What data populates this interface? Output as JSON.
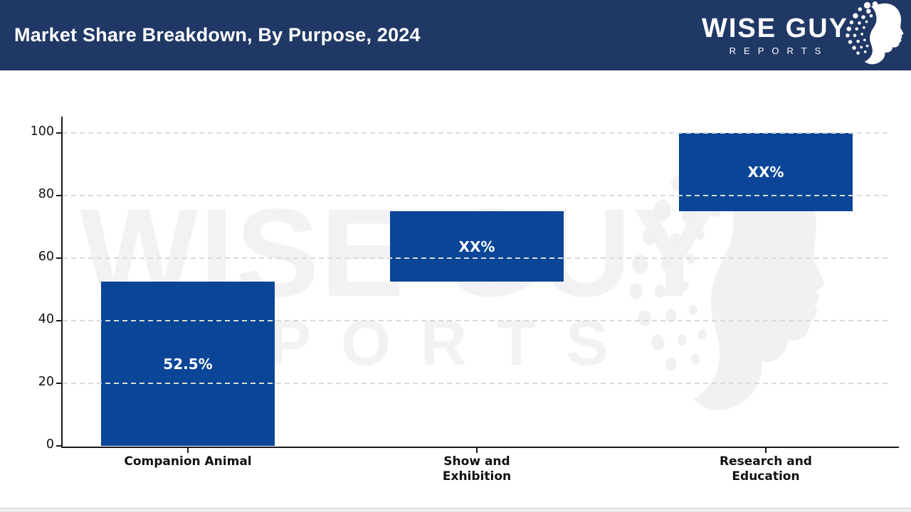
{
  "header": {
    "title": "Market Share Breakdown, By Purpose, 2024",
    "logo_line1": "WISE GUY",
    "logo_line2": "REPORTS"
  },
  "watermark": {
    "line1": "WISE GUY",
    "line2": "REPORTS"
  },
  "colors": {
    "header_bg": "#203865",
    "bar": "#0a4598",
    "grid": "#d9d9d9",
    "axis": "#1a1a1a",
    "watermark": "#f2f2f5"
  },
  "chart_data": {
    "type": "bar",
    "subtype": "waterfall",
    "title": "Market Share Breakdown, By Purpose, 2024",
    "categories": [
      [
        "Companion Animal"
      ],
      [
        "Show and",
        "Exhibition"
      ],
      [
        "Research and",
        "Education"
      ]
    ],
    "category_names": [
      "Companion Animal",
      "Show and Exhibition",
      "Research and Education"
    ],
    "series": [
      {
        "name": "Market share (%)",
        "segments": [
          {
            "start": 0,
            "end": 52.5,
            "label": "52.5%"
          },
          {
            "start": 52.5,
            "end": 75,
            "label": "XX%"
          },
          {
            "start": 75,
            "end": 100,
            "label": "XX%"
          }
        ]
      }
    ],
    "ylim": [
      0,
      100
    ],
    "yticks": [
      0,
      20,
      40,
      60,
      80,
      100
    ],
    "grid": "horizontal-dashed",
    "gridlines_above_bars": true,
    "legend": "none"
  }
}
